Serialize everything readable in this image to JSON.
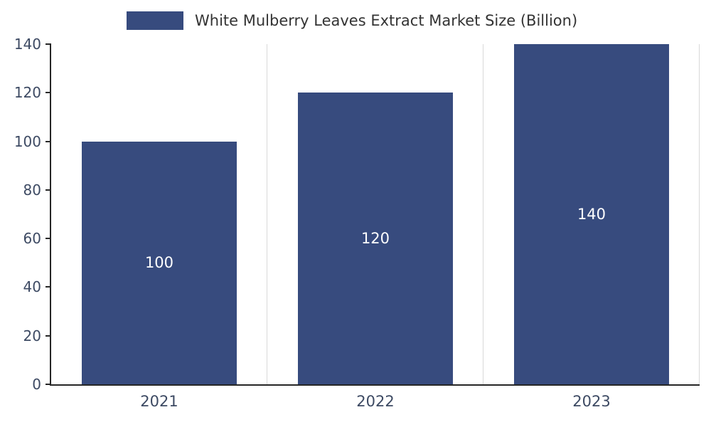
{
  "chart_data": {
    "type": "bar",
    "legend": {
      "label": "White Mulberry Leaves Extract Market Size (Billion)"
    },
    "categories": [
      "2021",
      "2022",
      "2023"
    ],
    "values": [
      100,
      120,
      140
    ],
    "bar_labels": [
      "100",
      "120",
      "140"
    ],
    "ylim": [
      0,
      140
    ],
    "ytick_step": 20,
    "yticks": [
      0,
      20,
      40,
      60,
      80,
      100,
      120,
      140
    ],
    "grid": "vertical-category-boundaries",
    "legend_position": "top",
    "colors": {
      "bar": "#374B7E",
      "bar_label_text": "#ffffff",
      "axis": "#262626",
      "grid": "#d9d9d9",
      "tick_text": "#3d4a63",
      "legend_text": "#333333"
    }
  }
}
